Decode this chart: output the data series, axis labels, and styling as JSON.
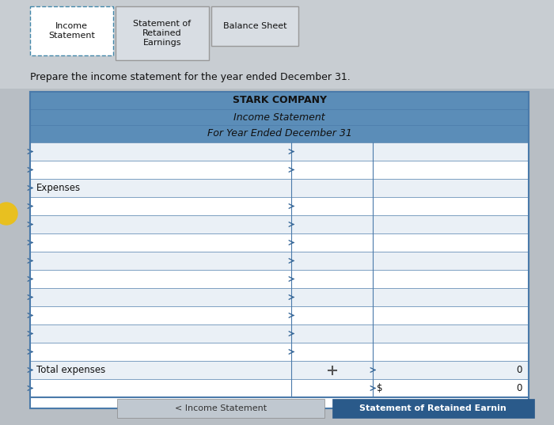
{
  "title_company": "STARK COMPANY",
  "title_statement": "Income Statement",
  "title_period": "For Year Ended December 31",
  "instruction": "Prepare the income statement for the year ended December 31.",
  "label_expenses": "Expenses",
  "label_total": "Total expenses",
  "bottom_tab_left": "< Income Statement",
  "bottom_tab_right": "Statement of Retained Earnin",
  "header_bg": "#5b8db8",
  "row_even_bg": "#eaf0f6",
  "row_odd_bg": "#ffffff",
  "tab_active_bg": "#ffffff",
  "tab_inactive_bg": "#d8dde3",
  "border_color": "#4a7aaa",
  "arrow_color": "#3a6a9a",
  "instr_bg": "#c8cdd2",
  "page_bg": "#b8bec4",
  "value_0": "0",
  "value_1": "0",
  "dollar_sign": "$"
}
